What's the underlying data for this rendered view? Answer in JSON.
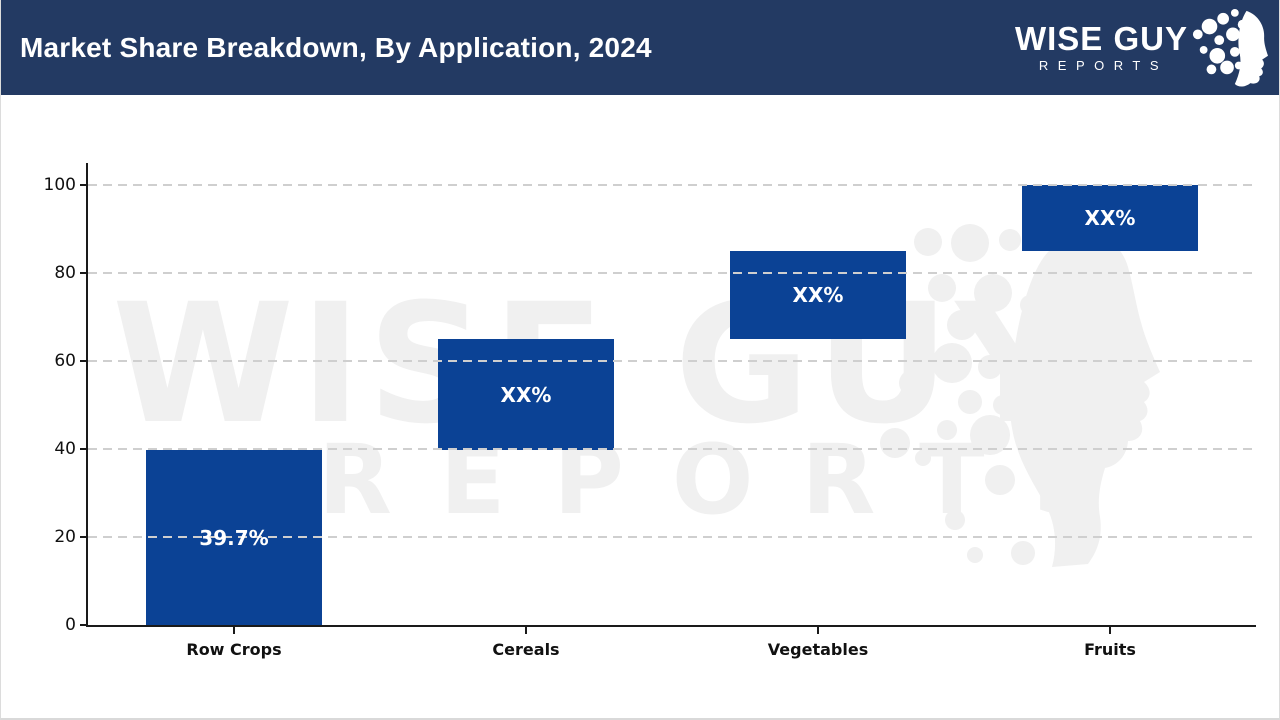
{
  "header": {
    "title": "Market Share Breakdown, By Application, 2024",
    "logo": {
      "name": "WISE GUY",
      "sub": "REPORTS"
    }
  },
  "watermark": {
    "big": "WISE GUY",
    "sub": "REPORTS"
  },
  "colors": {
    "header_bg": "#233a63",
    "bar": "#0b4295",
    "grid": "#cfcfcf",
    "axis_text": "#111111",
    "bar_label_text": "#ffffff",
    "watermark": "#f0f0f0"
  },
  "chart_data": {
    "type": "bar",
    "subtype": "waterfall-stacked-percentage",
    "title": "Market Share Breakdown, By Application, 2024",
    "categories": [
      "Row Crops",
      "Cereals",
      "Vegetables",
      "Fruits"
    ],
    "segments": [
      {
        "category": "Row Crops",
        "start": 0,
        "end": 39.7,
        "label": "39.7%"
      },
      {
        "category": "Cereals",
        "start": 39.7,
        "end": 65,
        "label": "XX%"
      },
      {
        "category": "Vegetables",
        "start": 65,
        "end": 85,
        "label": "XX%"
      },
      {
        "category": "Fruits",
        "start": 85,
        "end": 100,
        "label": "XX%"
      }
    ],
    "yticks": [
      0,
      20,
      40,
      60,
      80,
      100
    ],
    "ylim": [
      0,
      105
    ],
    "xlabel": "",
    "ylabel": "",
    "grid": "horizontal-dashed-above-bars",
    "legend": "none"
  }
}
